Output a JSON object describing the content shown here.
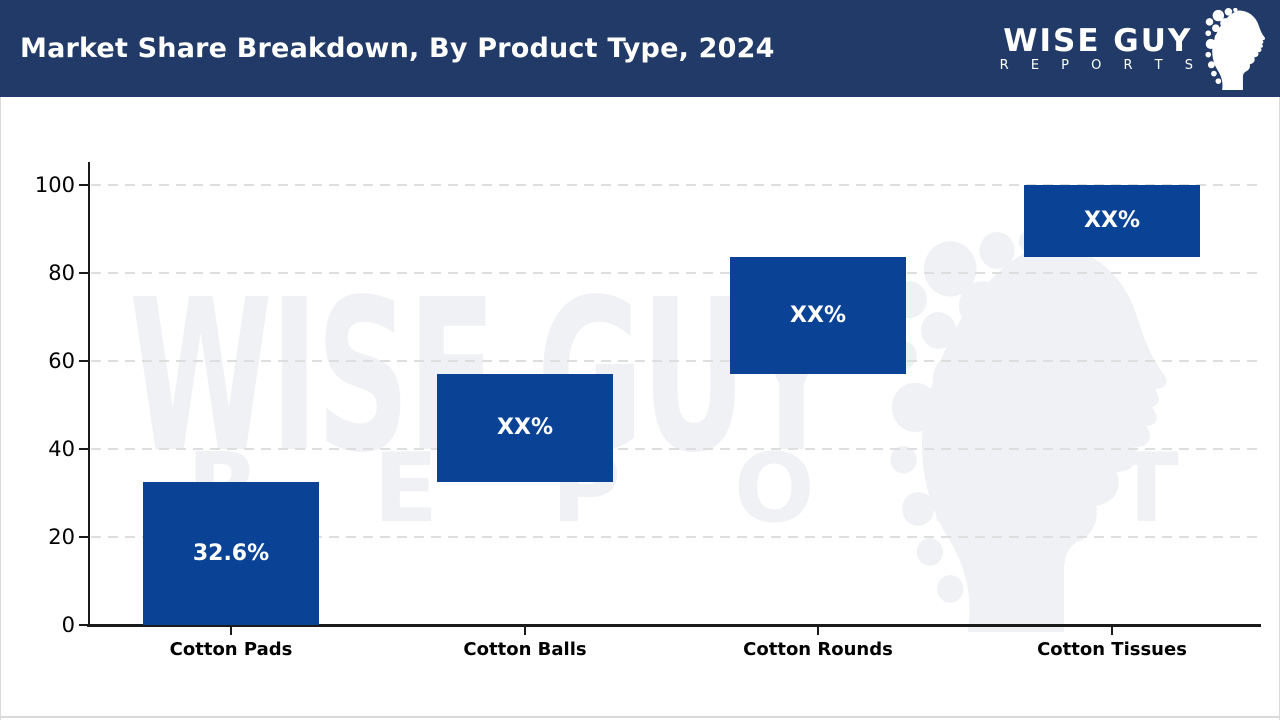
{
  "header": {
    "title": "Market Share Breakdown, By Product Type, 2024",
    "logo": {
      "line1": "WISE GUY",
      "line2": "R E P O R T S",
      "icon": "dot-face-profile"
    }
  },
  "watermark": {
    "line1": "WISE GUY",
    "line2": "R E P O R T S",
    "icon": "dot-face-profile"
  },
  "colors": {
    "header_bg": "#213a67",
    "bar": "#0a4296",
    "bar_label": "#ffffff",
    "grid": "#dedede",
    "axis": "#1a1a1a",
    "watermark": "#f0f1f5",
    "bottom_border": "#d9d9d9"
  },
  "chart_data": {
    "type": "bar",
    "subtype": "waterfall",
    "title": "Market Share Breakdown, By Product Type, 2024",
    "categories": [
      "Cotton Pads",
      "Cotton Balls",
      "Cotton Rounds",
      "Cotton Tissues"
    ],
    "series": [
      {
        "name": "Market Share",
        "segments": [
          {
            "category": "Cotton Pads",
            "start": 0,
            "end": 32.6,
            "label": "32.6%"
          },
          {
            "category": "Cotton Balls",
            "start": 32.6,
            "end": 57.0,
            "label": "XX%"
          },
          {
            "category": "Cotton Rounds",
            "start": 57.0,
            "end": 83.7,
            "label": "XX%"
          },
          {
            "category": "Cotton Tissues",
            "start": 83.7,
            "end": 100.0,
            "label": "XX%"
          }
        ]
      }
    ],
    "xlabel": "",
    "ylabel": "",
    "yticks": [
      0,
      20,
      40,
      60,
      80,
      100
    ],
    "ylim": [
      0,
      105
    ],
    "grid": "horizontal-dashed",
    "legend": "none"
  }
}
